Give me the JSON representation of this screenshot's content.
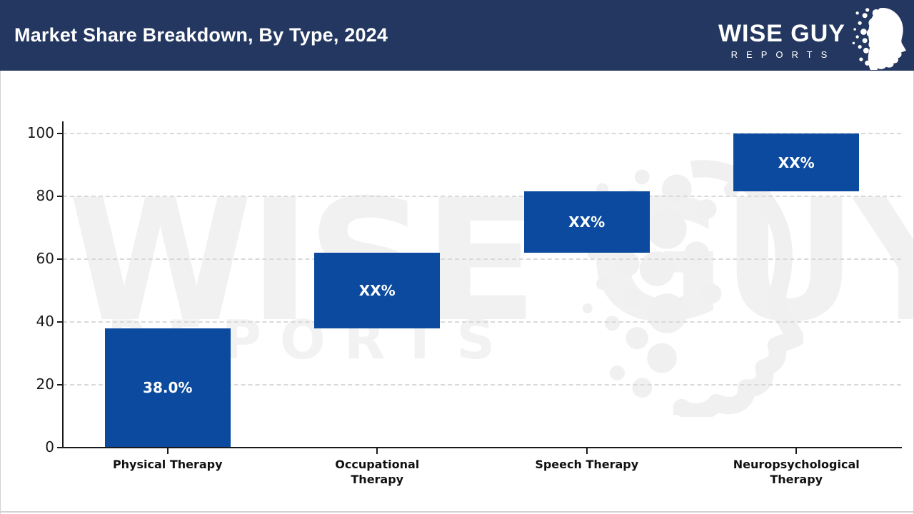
{
  "header": {
    "title": "Market Share Breakdown, By Type, 2024",
    "logo": {
      "name": "WISE GUY",
      "sub": "REPORTS"
    }
  },
  "watermark": {
    "line1": "WISE GUY",
    "line2": "REPORTS"
  },
  "chart_data": {
    "type": "bar",
    "subtype": "waterfall",
    "title": "Market Share Breakdown, By Type, 2024",
    "xlabel": "",
    "ylabel": "",
    "ylim": [
      0,
      100
    ],
    "yticks": [
      0,
      20,
      40,
      60,
      80,
      100
    ],
    "grid": true,
    "legend": false,
    "bar_color": "#0b4a9e",
    "value_label_color": "#ffffff",
    "categories": [
      "Physical Therapy",
      "Occupational Therapy",
      "Speech Therapy",
      "Neuropsychological Therapy"
    ],
    "category_label_lines": [
      [
        "Physical Therapy"
      ],
      [
        "Occupational",
        "Therapy"
      ],
      [
        "Speech Therapy"
      ],
      [
        "Neuropsychological",
        "Therapy"
      ]
    ],
    "segments": [
      {
        "category": "Physical Therapy",
        "start": 0,
        "end": 38,
        "value_label": "38.0%"
      },
      {
        "category": "Occupational Therapy",
        "start": 38,
        "end": 62,
        "value_label": "XX%"
      },
      {
        "category": "Speech Therapy",
        "start": 62,
        "end": 81.5,
        "value_label": "XX%"
      },
      {
        "category": "Neuropsychological Therapy",
        "start": 81.5,
        "end": 100,
        "value_label": "XX%"
      }
    ]
  },
  "colors": {
    "header_bg": "#233760",
    "bar": "#0b4a9e",
    "axis": "#1a1a1a",
    "gridline": "#d9d9d9",
    "watermark": "#f1f1f1",
    "border": "#d2d2d2"
  }
}
